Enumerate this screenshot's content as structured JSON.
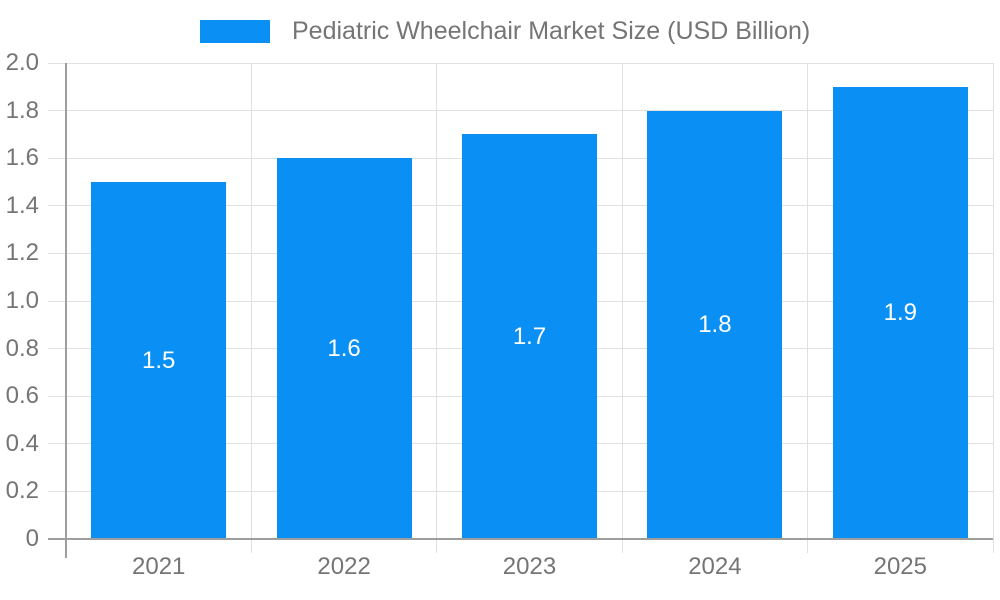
{
  "legend": {
    "label": "Pediatric Wheelchair Market Size (USD Billion)",
    "swatch_icon": "legend-swatch"
  },
  "colors": {
    "bar": "#0a90f5",
    "grid": "#e0e0e0",
    "axis": "#9e9e9e",
    "text": "#757575",
    "bar_label": "#ffffff"
  },
  "chart_data": {
    "type": "bar",
    "title": "Pediatric Wheelchair Market Size (USD Billion)",
    "categories": [
      "2021",
      "2022",
      "2023",
      "2024",
      "2025"
    ],
    "values": [
      1.5,
      1.6,
      1.7,
      1.8,
      1.9
    ],
    "data_labels": [
      "1.5",
      "1.6",
      "1.7",
      "1.8",
      "1.9"
    ],
    "xlabel": "",
    "ylabel": "",
    "ylim": [
      0,
      2.0
    ],
    "ytick_step": 0.2,
    "ytick_labels": [
      "0",
      "0.2",
      "0.4",
      "0.6",
      "0.8",
      "1.0",
      "1.2",
      "1.4",
      "1.6",
      "1.8",
      "2.0"
    ],
    "grid": true,
    "legend_position": "top"
  }
}
